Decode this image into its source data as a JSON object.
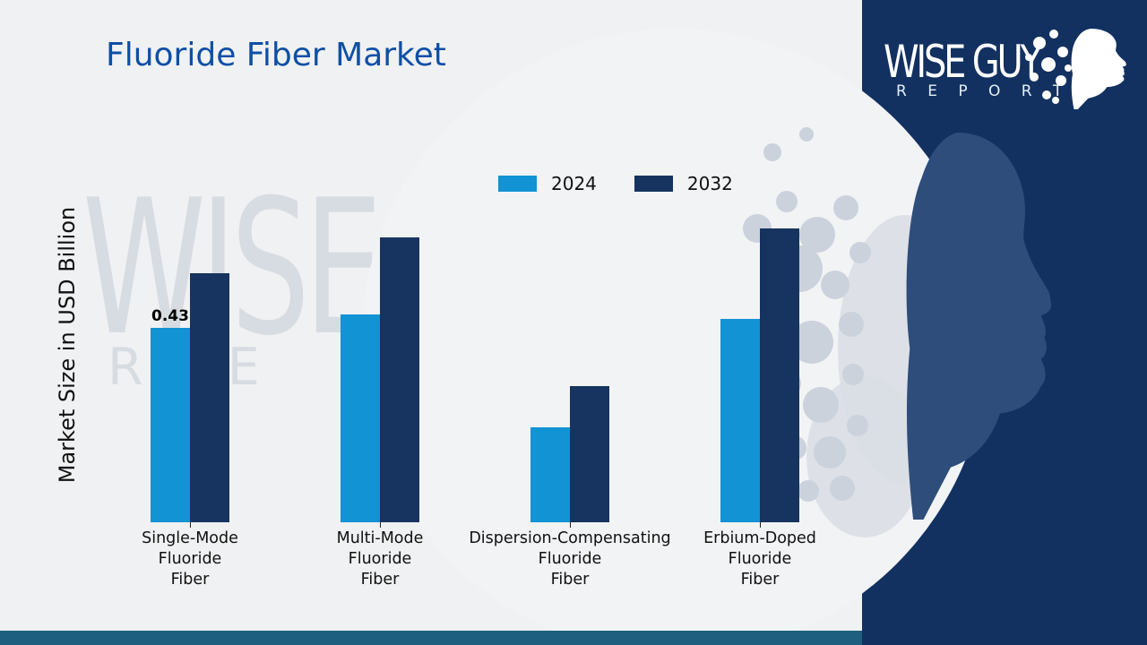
{
  "title": "Fluoride Fiber Market",
  "ylabel": "Market Size in USD Billion",
  "brand": {
    "logo_line1": "WISE GUY",
    "logo_line2": "R E P O R T S",
    "watermark_line1": "WISE GUY",
    "watermark_line2": "R E P O R T S"
  },
  "colors": {
    "background": "#f0f1f2",
    "bar_2024_blue": "#1193d4",
    "bar_2032_navy": "#16345f",
    "brand_panel_navy": "#123160",
    "footer_teal": "#1e5f7f",
    "title_blue": "#0d4fa6",
    "watermark_gray": "#d2d7df",
    "face_profile_blue": "#2e4d7b"
  },
  "legend": [
    {
      "label": "2024",
      "color": "#1193d4"
    },
    {
      "label": "2032",
      "color": "#16345f"
    }
  ],
  "chart_data": {
    "type": "bar",
    "title": "Fluoride Fiber Market",
    "xlabel": "",
    "ylabel": "Market Size in USD Billion",
    "categories": [
      "Single-Mode Fluoride Fiber",
      "Multi-Mode Fluoride Fiber",
      "Dispersion-Compensating Fluoride Fiber",
      "Erbium-Doped Fluoride Fiber"
    ],
    "categories_wrapped": [
      [
        "Single-Mode",
        "Fluoride",
        "Fiber"
      ],
      [
        "Multi-Mode",
        "Fluoride",
        "Fiber"
      ],
      [
        "Dispersion-Compensating",
        "Fluoride",
        "Fiber"
      ],
      [
        "Erbium-Doped",
        "Fluoride",
        "Fiber"
      ]
    ],
    "series": [
      {
        "name": "2024",
        "color": "#1193d4",
        "values": [
          0.43,
          0.46,
          0.21,
          0.45
        ]
      },
      {
        "name": "2032",
        "color": "#16345f",
        "values": [
          0.55,
          0.63,
          0.3,
          0.65
        ]
      }
    ],
    "annotations": [
      {
        "series_index": 0,
        "category_index": 0,
        "text": "0.43"
      }
    ],
    "ylim": [
      0,
      0.72
    ],
    "grid": false,
    "legend_position": "top-center",
    "y_axis_ticks_visible": false
  }
}
